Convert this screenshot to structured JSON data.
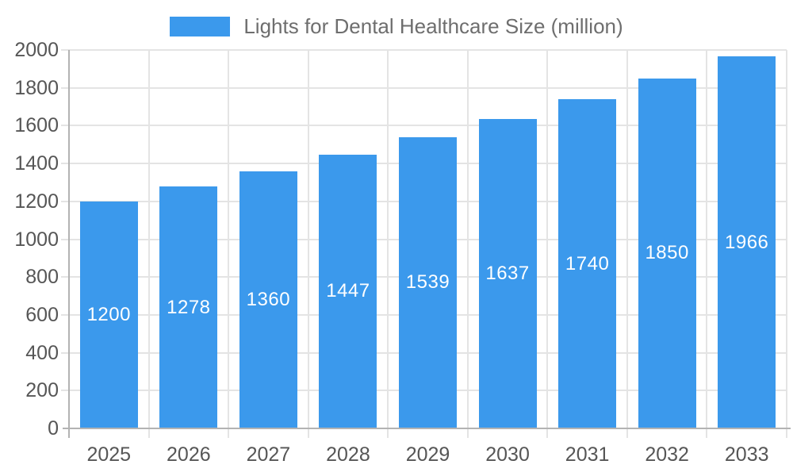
{
  "chart_data": {
    "type": "bar",
    "legend_label": "Lights for Dental Healthcare Size (million)",
    "legend_position": "top",
    "categories": [
      "2025",
      "2026",
      "2027",
      "2028",
      "2029",
      "2030",
      "2031",
      "2032",
      "2033"
    ],
    "series": [
      {
        "name": "Lights for Dental Healthcare Size (million)",
        "values": [
          1200,
          1278,
          1360,
          1447,
          1539,
          1637,
          1740,
          1850,
          1966
        ]
      }
    ],
    "xlabel": "",
    "ylabel": "",
    "ylim": [
      0,
      2000
    ],
    "ytick_step": 200,
    "grid": "horizontal and vertical gridlines on",
    "value_labels": "white, centered inside bars",
    "colors": {
      "bar": "#3b99ec",
      "gridline": "#e4e4e4",
      "axis_line": "#b3b3b3",
      "axis_label": "#565656",
      "value_label": "#ffffff",
      "legend_text": "#6e6e6e",
      "background": "#ffffff"
    }
  }
}
